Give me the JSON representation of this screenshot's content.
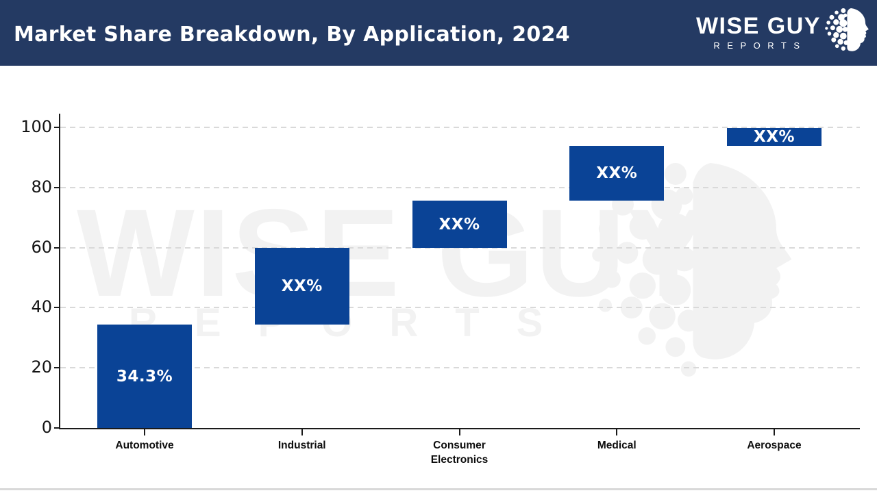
{
  "header": {
    "title": "Market Share Breakdown, By Application, 2024",
    "logo": {
      "name": "WISE GUY",
      "sub": "REPORTS"
    }
  },
  "watermark": {
    "name": "WISE GUY",
    "sub": "REPORTS"
  },
  "colors": {
    "header_bg": "#243a63",
    "bar_color": "#0a4396",
    "watermark_color": "#f2f2f2",
    "gridline_color": "#d9d9d9",
    "axis_color": "#1a1a1a"
  },
  "chart_data": {
    "type": "bar",
    "subtype": "waterfall-stacked-steps",
    "title": "Market Share Breakdown, By Application, 2024",
    "xlabel": "",
    "ylabel": "",
    "categories": [
      "Automotive",
      "Industrial",
      "Consumer Electronics",
      "Medical",
      "Aerospace"
    ],
    "segments": [
      {
        "category": "Automotive",
        "start": 0,
        "end": 34.3,
        "label": "34.3%"
      },
      {
        "category": "Industrial",
        "start": 34.3,
        "end": 59.8,
        "label": "XX%"
      },
      {
        "category": "Consumer Electronics",
        "start": 59.8,
        "end": 75.6,
        "label": "XX%"
      },
      {
        "category": "Medical",
        "start": 75.6,
        "end": 93.8,
        "label": "XX%"
      },
      {
        "category": "Aerospace",
        "start": 93.8,
        "end": 99.8,
        "label": "XX%"
      }
    ],
    "y_ticks": [
      0,
      20,
      40,
      60,
      80,
      100
    ],
    "ylim": [
      0,
      104.5
    ],
    "grid": "horizontal-dashed",
    "legend": "none",
    "bar_label_color": "#ffffff"
  }
}
